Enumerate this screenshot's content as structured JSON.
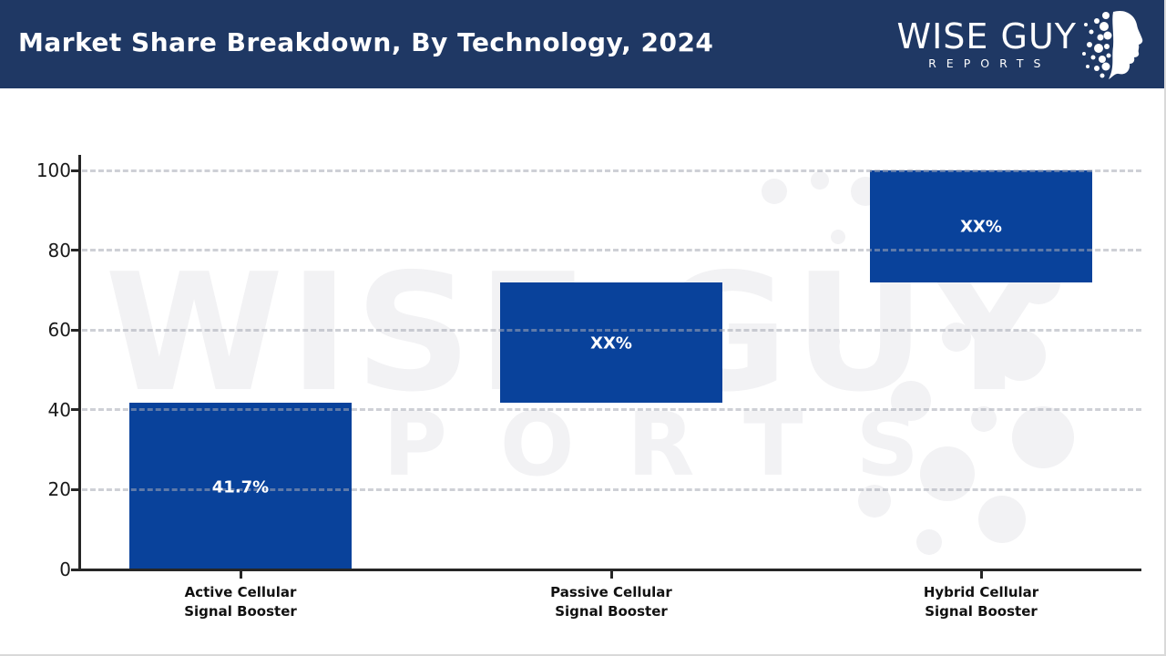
{
  "header": {
    "title": "Market Share Breakdown, By Technology, 2024",
    "bg_color": "#1f3864",
    "logo": {
      "wordmark": "WISE GUY",
      "subtext": "REPORTS"
    }
  },
  "watermark": {
    "wordmark": "WISE GUY",
    "subtext": "REPORTS"
  },
  "chart_data": {
    "type": "bar",
    "subtype": "waterfall",
    "title": "Market Share Breakdown, By Technology, 2024",
    "xlabel": "",
    "ylabel": "",
    "ylim": [
      0,
      100
    ],
    "yticks": [
      0,
      20,
      40,
      60,
      80,
      100
    ],
    "grid": true,
    "bar_color": "#09429b",
    "bar_label_color": "#ffffff",
    "categories": [
      "Active Cellular\nSignal Booster",
      "Passive Cellular\nSignal Booster",
      "Hybrid Cellular\nSignal Booster"
    ],
    "bars": [
      {
        "category": "Active Cellular\nSignal Booster",
        "start": 0,
        "end": 41.7,
        "value_label": "41.7%"
      },
      {
        "category": "Passive Cellular\nSignal Booster",
        "start": 41.7,
        "end": 72,
        "value_label": "XX%"
      },
      {
        "category": "Hybrid Cellular\nSignal Booster",
        "start": 72,
        "end": 100,
        "value_label": "XX%"
      }
    ]
  }
}
